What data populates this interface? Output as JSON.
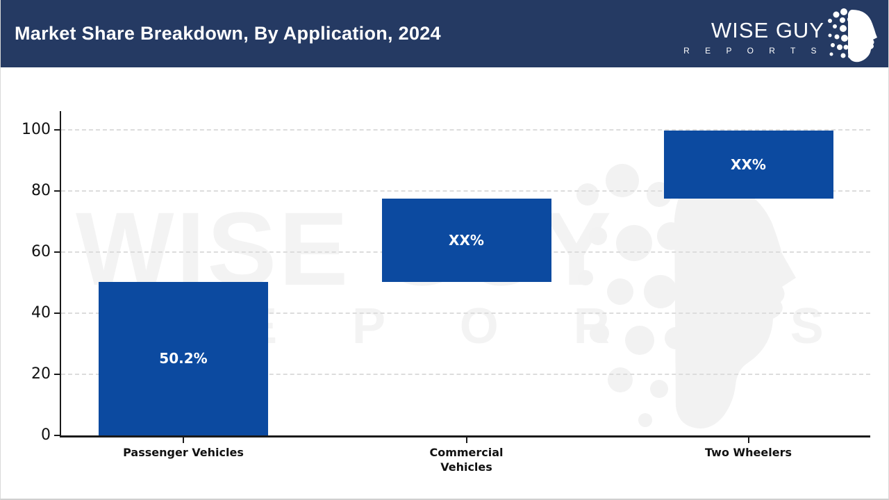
{
  "header": {
    "title": "Market Share Breakdown, By Application, 2024",
    "bg_color": "#253a63",
    "logo": {
      "line1": "WISE GUY",
      "line2": "R E P O R T S"
    }
  },
  "watermark": {
    "line1": "WISE GUY",
    "line2": "R E P O R T S"
  },
  "chart_data": {
    "type": "bar",
    "variant": "floating-segment-waterfall",
    "title": "Market Share Breakdown, By Application, 2024",
    "categories": [
      "Passenger Vehicles",
      "Commercial\nVehicles",
      "Two Wheelers"
    ],
    "segments": [
      {
        "category": "Passenger Vehicles",
        "start": 0,
        "end": 50.2,
        "label": "50.2%"
      },
      {
        "category": "Commercial Vehicles",
        "start": 50.2,
        "end": 77.3,
        "label": "XX%"
      },
      {
        "category": "Two Wheelers",
        "start": 77.3,
        "end": 99.6,
        "label": "XX%"
      }
    ],
    "xlabel": "",
    "ylabel": "",
    "ylim": [
      0,
      100
    ],
    "yticks": [
      0,
      20,
      40,
      60,
      80,
      100
    ],
    "grid": "horizontal-dashed",
    "legend": "none",
    "bar_color": "#0c4aa0",
    "bar_label_color": "#ffffff",
    "axis_color": "#1a1a1a",
    "grid_color": "#dcdcdc"
  }
}
